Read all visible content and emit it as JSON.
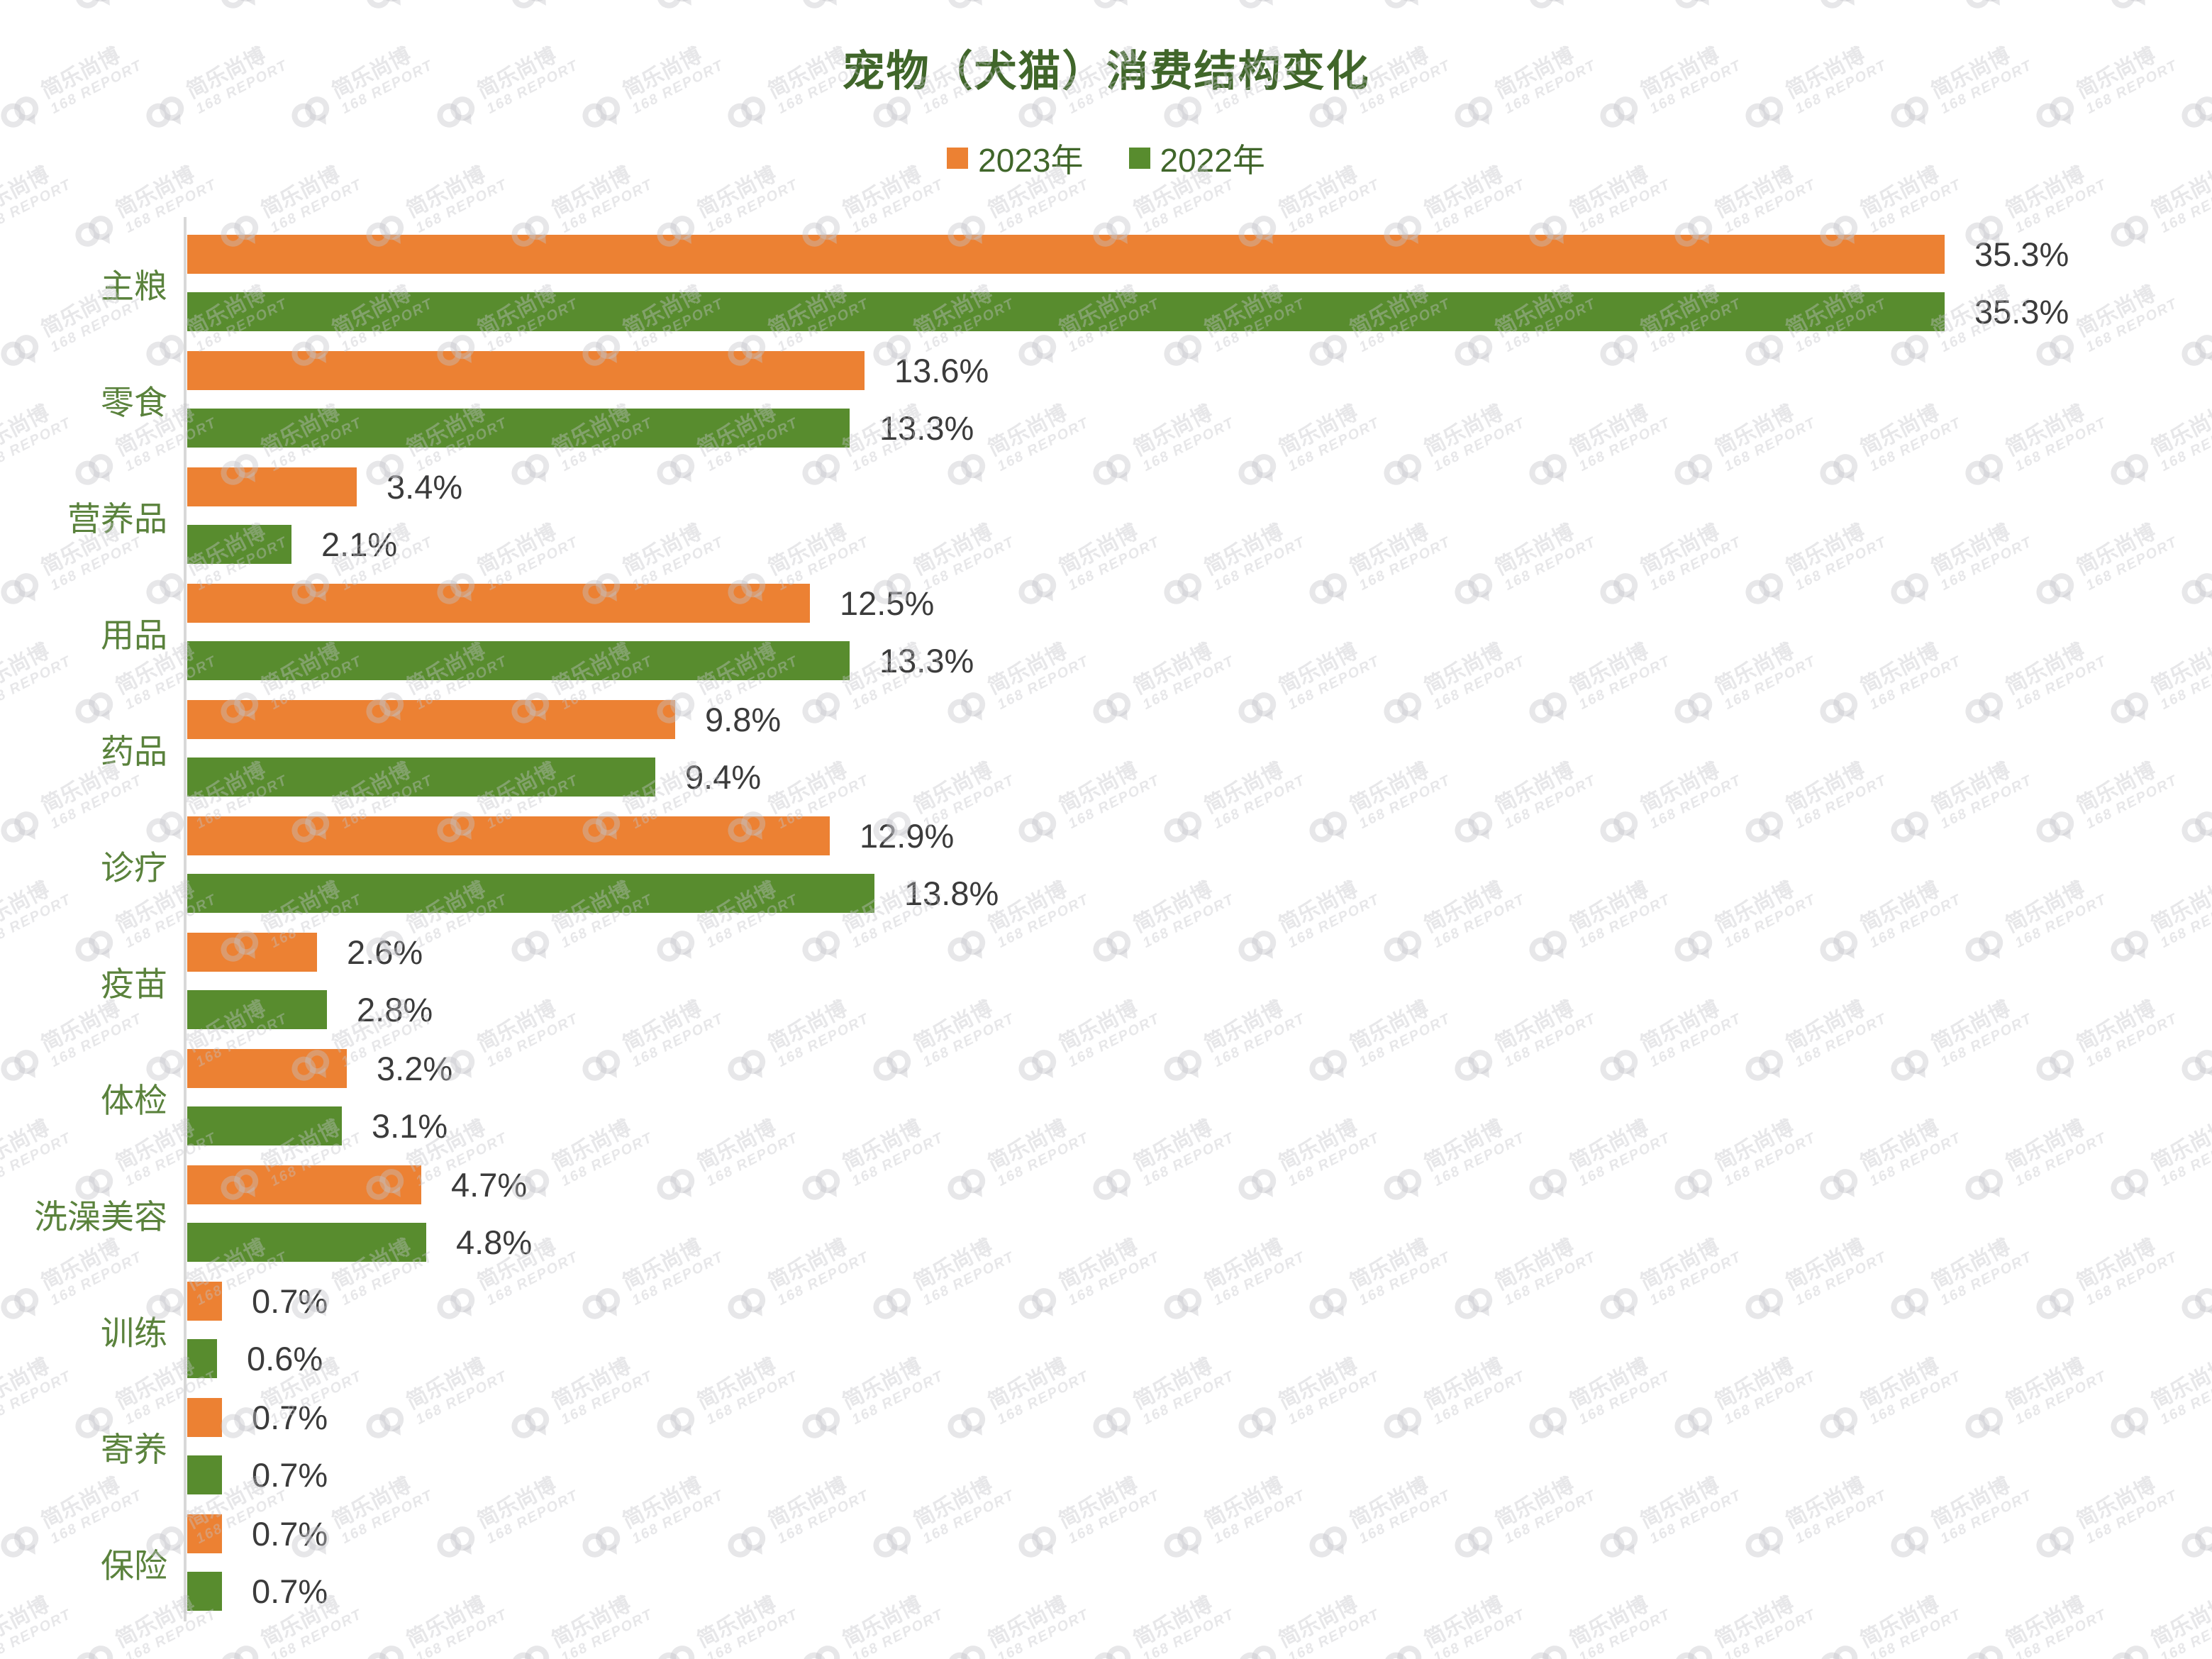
{
  "title": "宠物（犬猫）消费结构变化",
  "legend": [
    {
      "label": "2023年",
      "color": "#ec8133"
    },
    {
      "label": "2022年",
      "color": "#588c2e"
    }
  ],
  "chart_data": {
    "type": "bar",
    "orientation": "horizontal",
    "title": "宠物（犬猫）消费结构变化",
    "categories": [
      "主粮",
      "零食",
      "营养品",
      "用品",
      "药品",
      "诊疗",
      "疫苗",
      "体检",
      "洗澡美容",
      "训练",
      "寄养",
      "保险"
    ],
    "series": [
      {
        "name": "2023年",
        "color": "#ec8133",
        "values": [
          35.3,
          13.6,
          3.4,
          12.5,
          9.8,
          12.9,
          2.6,
          3.2,
          4.7,
          0.7,
          0.7,
          0.7
        ]
      },
      {
        "name": "2022年",
        "color": "#588c2e",
        "values": [
          35.3,
          13.3,
          2.1,
          13.3,
          9.4,
          13.8,
          2.8,
          3.1,
          4.8,
          0.6,
          0.7,
          0.7
        ]
      }
    ],
    "value_suffix": "%",
    "data_labels": true,
    "xlim": [
      0,
      40
    ],
    "grid": false,
    "legend_position": "top",
    "axis_color": "#d8d8d8",
    "label_color": "#3b3b3b",
    "category_color": "#5a823c",
    "title_color": "#40662a"
  },
  "watermark": {
    "brand": "简乐尚博",
    "subtext": "168 REPORT"
  }
}
